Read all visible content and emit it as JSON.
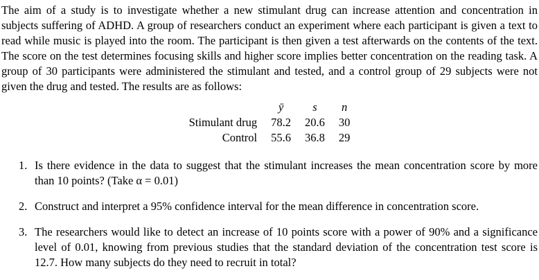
{
  "document": {
    "intro": "The aim of a study is to investigate whether a new stimulant drug can increase attention and concentration in subjects suffering of ADHD. A group of researchers conduct an experiment where each participant is given a text to read while music is played into the room. The participant is then given a test afterwards on the contents of the text. The score on the test determines focusing skills and higher score implies better concentration on the reading task. A group of 30 participants were administered the stimulant and tested, and a control group of 29 subjects were not given the drug and tested. The results are as follows:",
    "table": {
      "columns": [
        "ȳ",
        "s",
        "n"
      ],
      "rows": [
        {
          "label": "Stimulant drug",
          "values": [
            "78.2",
            "20.6",
            "30"
          ]
        },
        {
          "label": "Control",
          "values": [
            "55.6",
            "36.8",
            "29"
          ]
        }
      ]
    },
    "questions": [
      {
        "number": "1.",
        "text": "Is there evidence in the data to suggest that the stimulant increases the mean concentration score by more than 10 points? (Take α = 0.01)"
      },
      {
        "number": "2.",
        "text": "Construct and interpret a 95% confidence interval for the mean difference in concentration score."
      },
      {
        "number": "3.",
        "text": "The researchers would like to detect an increase of 10 points score with a power of 90% and a significance level of 0.01, knowing from previous studies that the standard deviation of the concentration test score is 12.7. How many subjects do they need to recruit in total?"
      }
    ]
  }
}
